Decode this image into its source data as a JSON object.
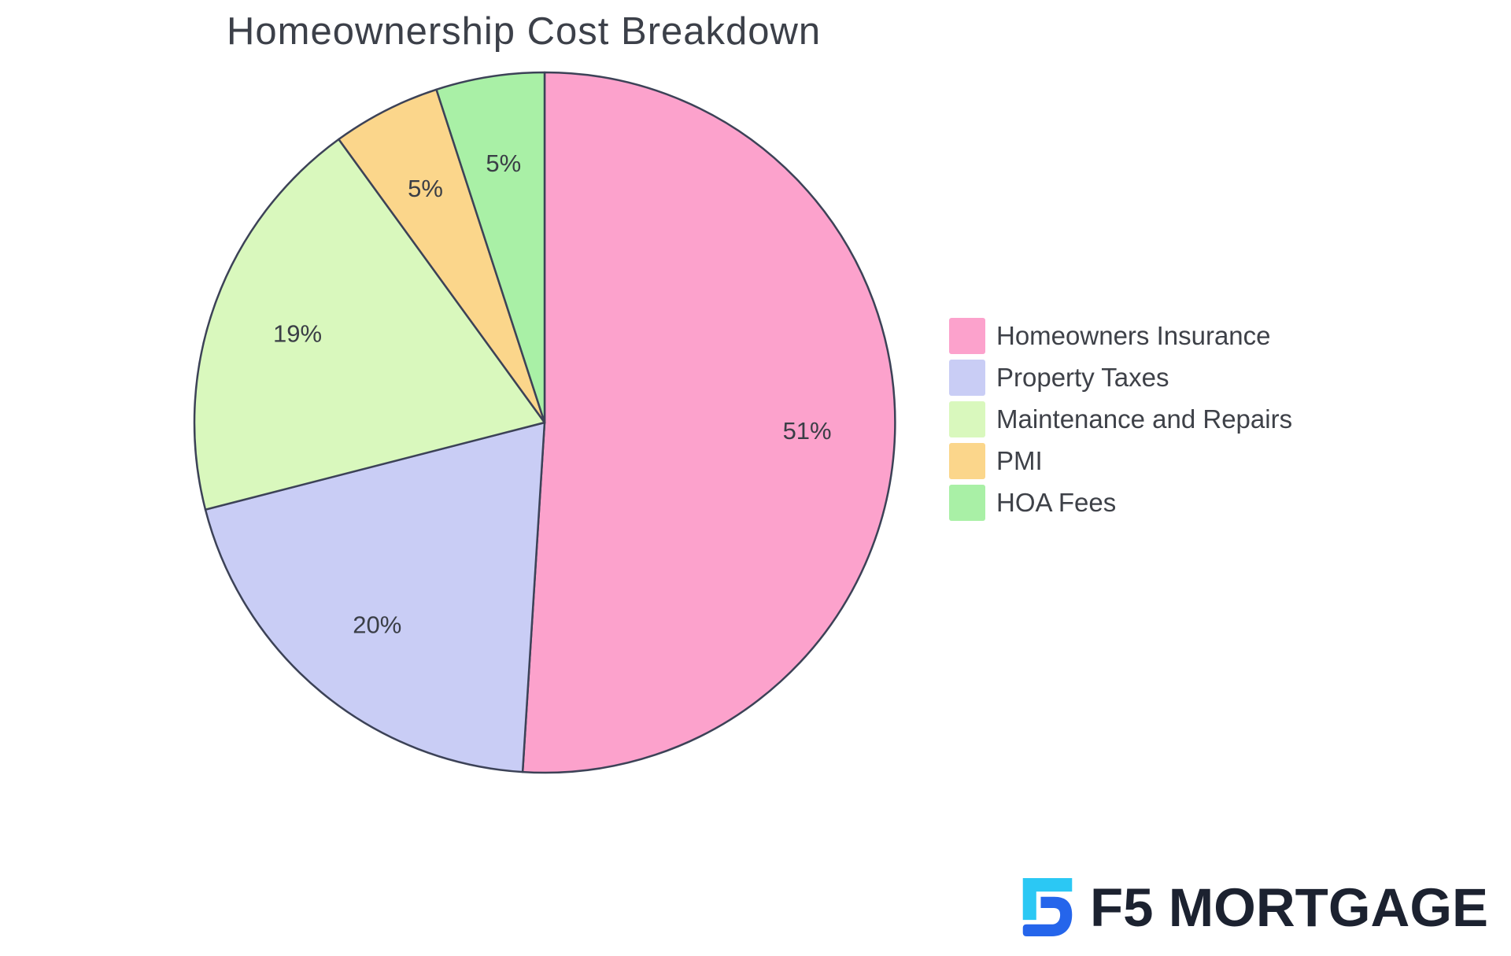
{
  "title": "Homeownership Cost Breakdown",
  "chart_data": {
    "type": "pie",
    "labels": [
      "Homeowners Insurance",
      "Property Taxes",
      "Maintenance and Repairs",
      "PMI",
      "HOA Fees"
    ],
    "values": [
      51,
      20,
      19,
      5,
      5
    ],
    "slice_labels": [
      "51%",
      "20%",
      "19%",
      "5%",
      "5%"
    ],
    "unit": "%",
    "colors": [
      "#FCA2CC",
      "#C9CDF5",
      "#D9F8BD",
      "#FBD68B",
      "#A9F0A6"
    ],
    "slice_border_color": "#3C4257",
    "start_angle": "top",
    "direction": "clockwise",
    "label_position": "inside",
    "legend_position": "right"
  },
  "brand": {
    "logo_text": "F5 MORTGAGE",
    "mark_cyan": "#2BC8F4",
    "mark_blue": "#2565EB",
    "text_color": "#1C2230"
  }
}
